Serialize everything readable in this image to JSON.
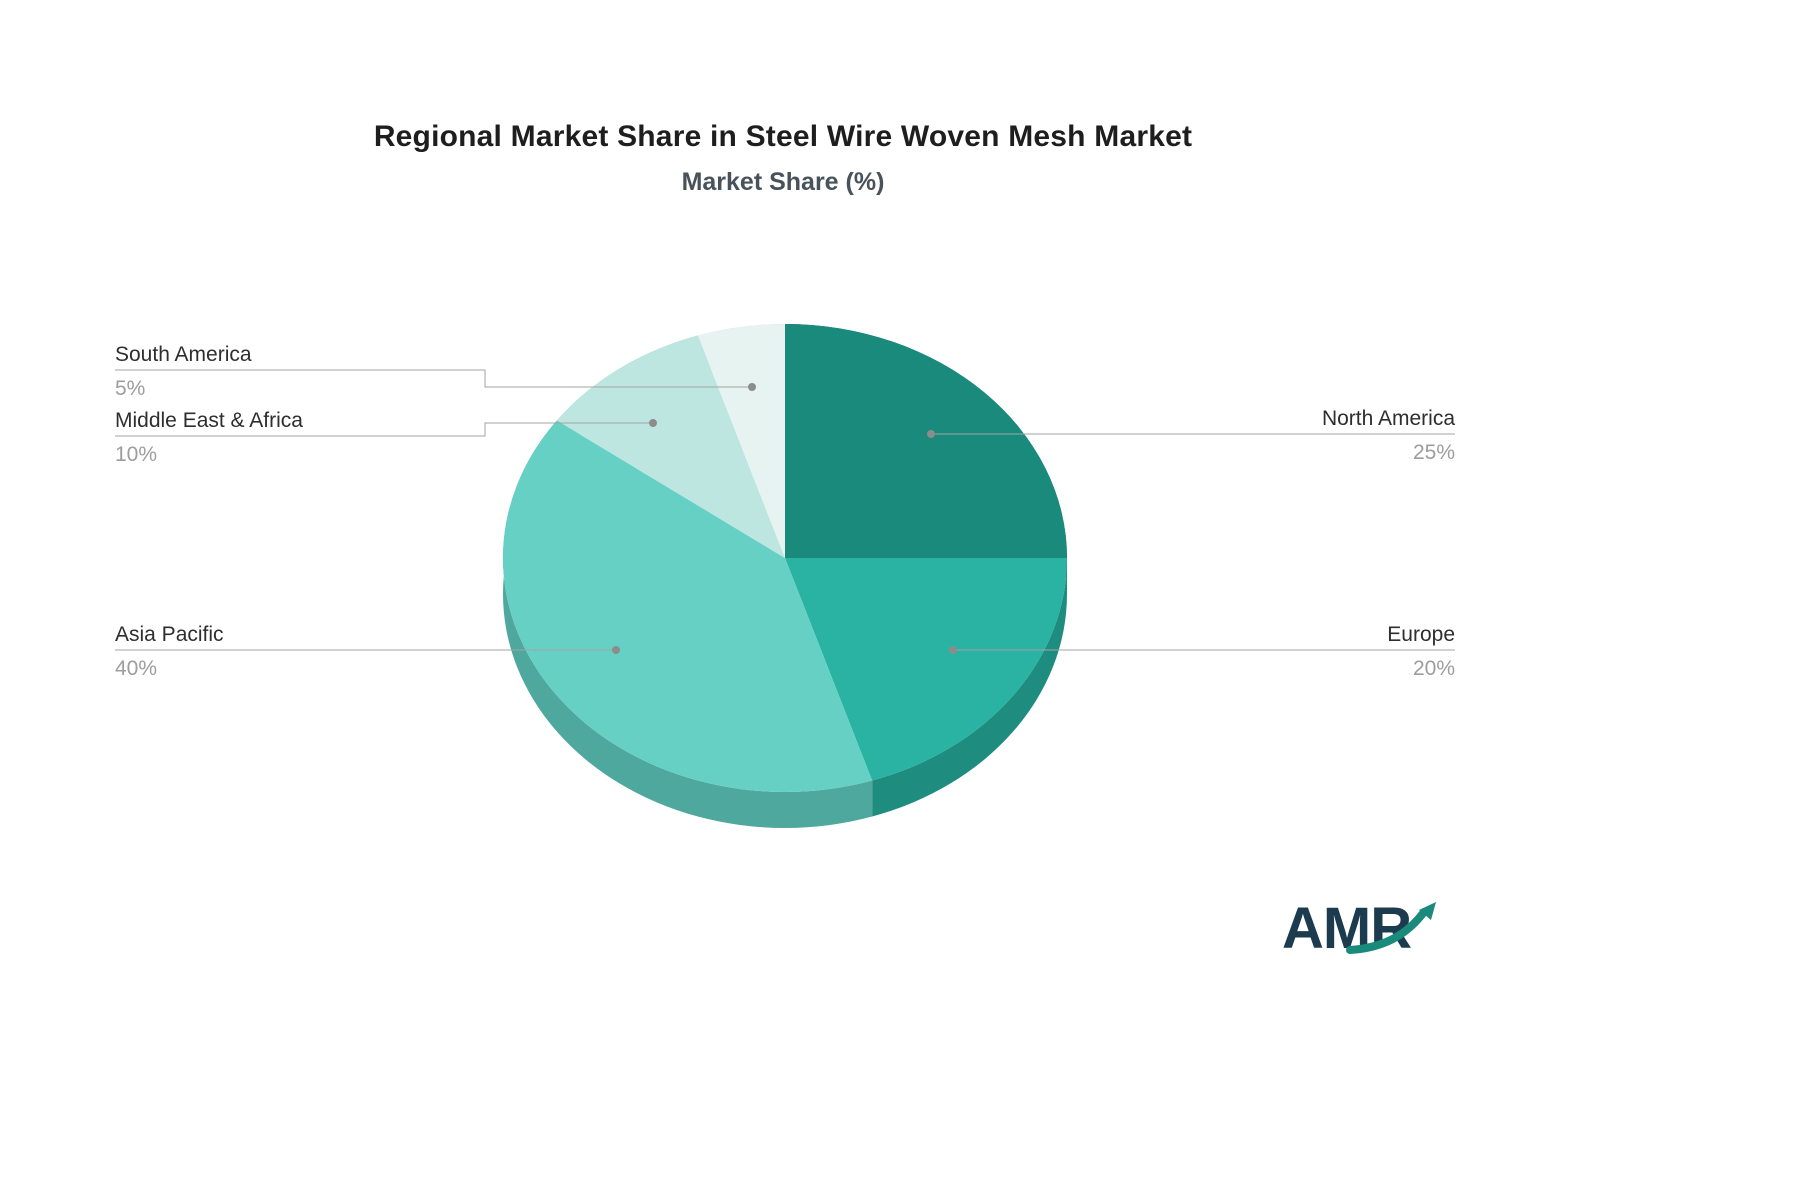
{
  "header": {
    "title": "Regional Market Share in Steel Wire Woven Mesh Market",
    "subtitle": "Market Share (%)"
  },
  "chart_data": {
    "type": "pie",
    "title": "Regional Market Share in Steel Wire Woven Mesh Market",
    "subtitle": "Market Share (%)",
    "unit": "%",
    "labels": [
      "North America",
      "Europe",
      "Asia Pacific",
      "Middle East & Africa",
      "South America"
    ],
    "values": [
      25,
      20,
      40,
      10,
      5
    ],
    "colors": [
      "#1a8a7d",
      "#2ab3a3",
      "#67d0c4",
      "#bde6e0",
      "#e6f3f0"
    ],
    "side_colors": [
      "#116357",
      "#1e8d80",
      "#4ea89d",
      "#92c2bb",
      "#b9d6d0"
    ],
    "start_angle": "top",
    "direction": "clockwise",
    "style": "3d",
    "legend_position": "none",
    "background": "#ffffff"
  },
  "callouts": [
    {
      "name": "North America",
      "value": "25%",
      "side": "right"
    },
    {
      "name": "Europe",
      "value": "20%",
      "side": "right"
    },
    {
      "name": "Asia Pacific",
      "value": "40%",
      "side": "left"
    },
    {
      "name": "Middle East & Africa",
      "value": "10%",
      "side": "left"
    },
    {
      "name": "South America",
      "value": "5%",
      "side": "left"
    }
  ],
  "logo": {
    "text": "AMR",
    "text_color": "#1d3b4e",
    "arrow_color": "#1a8a7d"
  },
  "colors": {
    "label_name": "#2e2e2e",
    "label_value": "#9d9d9d",
    "leader_line": "#a3a3a3",
    "background": "#ffffff"
  }
}
